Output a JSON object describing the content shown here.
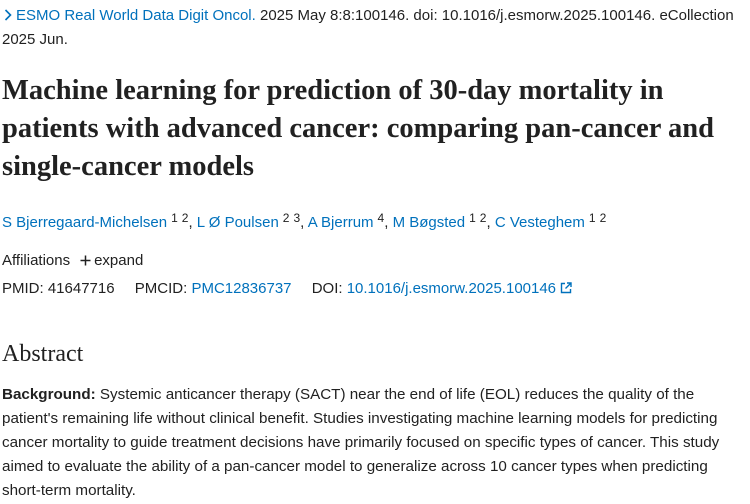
{
  "citation": {
    "journal": "ESMO Real World Data Digit Oncol.",
    "details": "2025 May 8:8:100146. doi: 10.1016/j.esmorw.2025.100146. eCollection 2025 Jun."
  },
  "title": "Machine learning for prediction of 30-day mortality in patients with advanced cancer: comparing pan-cancer and single-cancer models",
  "authors": {
    "separator": ", ",
    "list": [
      {
        "name": "S Bjerregaard-Michelsen",
        "affiliations": [
          "1",
          "2"
        ]
      },
      {
        "name": "L Ø Poulsen",
        "affiliations": [
          "2",
          "3"
        ]
      },
      {
        "name": "A Bjerrum",
        "affiliations": [
          "4"
        ]
      },
      {
        "name": "M Bøgsted",
        "affiliations": [
          "1",
          "2"
        ]
      },
      {
        "name": "C Vesteghem",
        "affiliations": [
          "1",
          "2"
        ]
      }
    ]
  },
  "affiliations": {
    "label": "Affiliations",
    "toggle": "expand"
  },
  "identifiers": {
    "pmid": {
      "label": "PMID:",
      "value": "41647716"
    },
    "pmcid": {
      "label": "PMCID:",
      "value": "PMC12836737"
    },
    "doi": {
      "label": "DOI:",
      "value": "10.1016/j.esmorw.2025.100146"
    }
  },
  "abstract": {
    "heading": "Abstract",
    "background": {
      "label": "Background:",
      "text": "Systemic anticancer therapy (SACT) near the end of life (EOL) reduces the quality of the patient's remaining life without clinical benefit. Studies investigating machine learning models for predicting cancer mortality to guide treatment decisions have primarily focused on specific types of cancer. This study aimed to evaluate the ability of a pan-cancer model to generalize across 10 cancer types when predicting short-term mortality."
    }
  }
}
